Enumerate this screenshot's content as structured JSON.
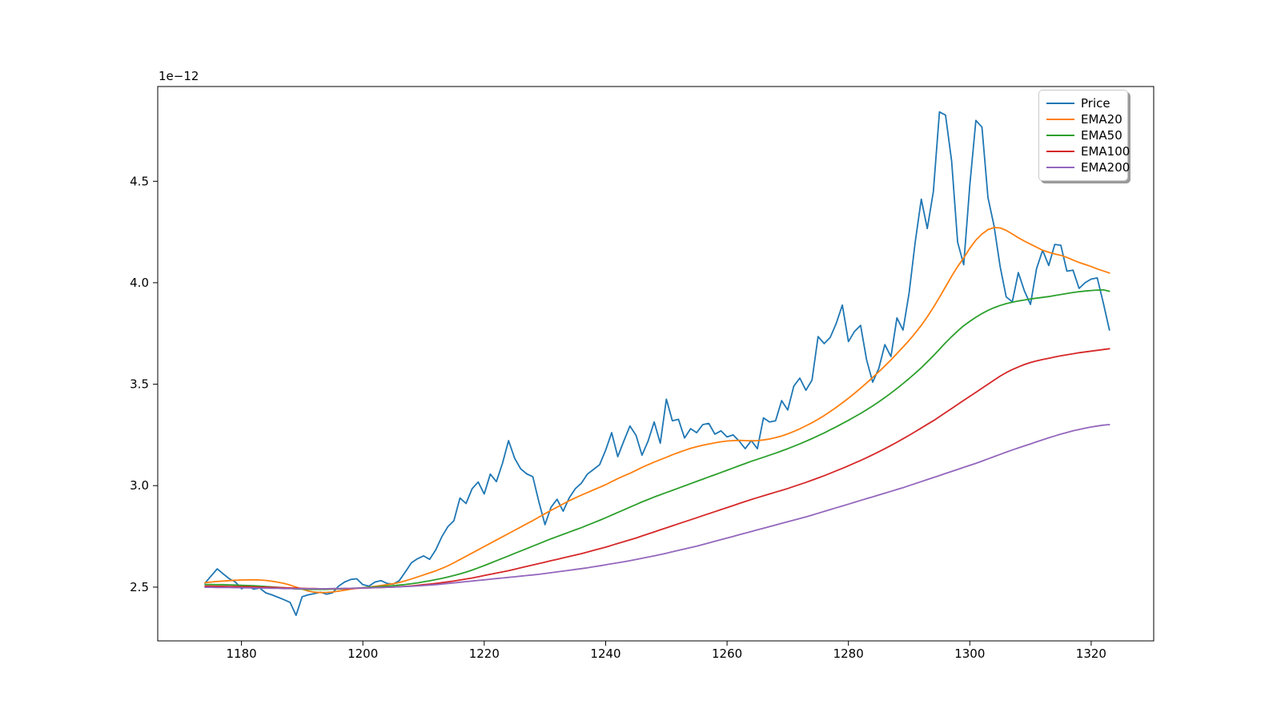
{
  "figure": {
    "y_offset_text": "1e−12",
    "background_color": "#ffffff",
    "spine_color": "#000000",
    "tick_label_color": "#000000"
  },
  "chart_data": {
    "type": "line",
    "title": "",
    "xlabel": "",
    "ylabel": "",
    "grid": false,
    "legend_position": "upper right",
    "y_scale_factor": "1e-12",
    "xlim": [
      1166.2,
      1330.3
    ],
    "ylim": [
      2.235,
      4.967
    ],
    "x_ticks": [
      1180,
      1200,
      1220,
      1240,
      1260,
      1280,
      1300,
      1320
    ],
    "y_ticks": [
      2.5,
      3.0,
      3.5,
      4.0,
      4.5
    ],
    "x_start": 1174,
    "x_step": 1,
    "series": [
      {
        "name": "Price",
        "color": "#1f77b4",
        "values": [
          2.52,
          2.555,
          2.59,
          2.565,
          2.541,
          2.525,
          2.492,
          2.505,
          2.49,
          2.495,
          2.472,
          2.462,
          2.45,
          2.438,
          2.425,
          2.361,
          2.453,
          2.462,
          2.468,
          2.475,
          2.465,
          2.472,
          2.505,
          2.525,
          2.538,
          2.541,
          2.512,
          2.505,
          2.525,
          2.532,
          2.518,
          2.515,
          2.532,
          2.575,
          2.62,
          2.64,
          2.654,
          2.637,
          2.683,
          2.748,
          2.798,
          2.827,
          2.939,
          2.912,
          2.985,
          3.018,
          2.959,
          3.057,
          3.02,
          3.11,
          3.222,
          3.136,
          3.083,
          3.058,
          3.044,
          2.92,
          2.808,
          2.893,
          2.933,
          2.874,
          2.94,
          2.985,
          3.012,
          3.057,
          3.08,
          3.103,
          3.175,
          3.261,
          3.143,
          3.22,
          3.294,
          3.248,
          3.15,
          3.22,
          3.314,
          3.209,
          3.426,
          3.32,
          3.327,
          3.235,
          3.281,
          3.261,
          3.301,
          3.307,
          3.254,
          3.27,
          3.24,
          3.25,
          3.22,
          3.182,
          3.222,
          3.182,
          3.334,
          3.314,
          3.32,
          3.419,
          3.373,
          3.491,
          3.53,
          3.47,
          3.52,
          3.735,
          3.7,
          3.73,
          3.8,
          3.89,
          3.71,
          3.76,
          3.79,
          3.62,
          3.51,
          3.577,
          3.695,
          3.636,
          3.827,
          3.767,
          3.95,
          4.2,
          4.412,
          4.267,
          4.45,
          4.842,
          4.826,
          4.6,
          4.2,
          4.089,
          4.48,
          4.8,
          4.767,
          4.42,
          4.28,
          4.08,
          3.93,
          3.906,
          4.05,
          3.96,
          3.893,
          4.07,
          4.16,
          4.085,
          4.189,
          4.185,
          4.057,
          4.062,
          3.972,
          4.0,
          4.018,
          4.024,
          3.9,
          3.767
        ]
      },
      {
        "name": "EMA20",
        "color": "#ff7f0e",
        "values": [
          2.522,
          2.525,
          2.528,
          2.53,
          2.532,
          2.534,
          2.535,
          2.536,
          2.536,
          2.535,
          2.533,
          2.529,
          2.524,
          2.518,
          2.51,
          2.5,
          2.49,
          2.481,
          2.475,
          2.473,
          2.474,
          2.476,
          2.48,
          2.485,
          2.49,
          2.494,
          2.497,
          2.5,
          2.504,
          2.508,
          2.512,
          2.517,
          2.523,
          2.531,
          2.54,
          2.55,
          2.56,
          2.57,
          2.58,
          2.592,
          2.605,
          2.62,
          2.636,
          2.652,
          2.668,
          2.684,
          2.7,
          2.716,
          2.732,
          2.748,
          2.764,
          2.78,
          2.796,
          2.812,
          2.828,
          2.845,
          2.862,
          2.878,
          2.894,
          2.91,
          2.926,
          2.94,
          2.953,
          2.966,
          2.979,
          2.992,
          3.005,
          3.02,
          3.035,
          3.048,
          3.061,
          3.075,
          3.09,
          3.103,
          3.116,
          3.128,
          3.14,
          3.152,
          3.163,
          3.174,
          3.184,
          3.192,
          3.199,
          3.205,
          3.211,
          3.216,
          3.22,
          3.222,
          3.223,
          3.222,
          3.221,
          3.222,
          3.225,
          3.23,
          3.237,
          3.245,
          3.255,
          3.267,
          3.28,
          3.295,
          3.31,
          3.327,
          3.345,
          3.365,
          3.386,
          3.408,
          3.431,
          3.455,
          3.48,
          3.506,
          3.533,
          3.561,
          3.59,
          3.62,
          3.651,
          3.683,
          3.716,
          3.752,
          3.79,
          3.832,
          3.878,
          3.928,
          3.98,
          4.032,
          4.08,
          4.122,
          4.17,
          4.21,
          4.24,
          4.262,
          4.272,
          4.27,
          4.258,
          4.24,
          4.222,
          4.205,
          4.19,
          4.175,
          4.16,
          4.15,
          4.142,
          4.135,
          4.125,
          4.112,
          4.1,
          4.09,
          4.08,
          4.068,
          4.058,
          4.048
        ]
      },
      {
        "name": "EMA50",
        "color": "#2ca02c",
        "values": [
          2.513,
          2.513,
          2.512,
          2.512,
          2.511,
          2.51,
          2.509,
          2.508,
          2.507,
          2.505,
          2.503,
          2.501,
          2.499,
          2.497,
          2.494,
          2.491,
          2.49,
          2.489,
          2.489,
          2.489,
          2.489,
          2.49,
          2.491,
          2.492,
          2.494,
          2.495,
          2.497,
          2.499,
          2.501,
          2.503,
          2.505,
          2.507,
          2.51,
          2.513,
          2.517,
          2.521,
          2.526,
          2.531,
          2.537,
          2.543,
          2.55,
          2.557,
          2.565,
          2.574,
          2.584,
          2.595,
          2.606,
          2.618,
          2.63,
          2.642,
          2.654,
          2.666,
          2.678,
          2.69,
          2.702,
          2.714,
          2.726,
          2.738,
          2.749,
          2.76,
          2.771,
          2.782,
          2.793,
          2.805,
          2.817,
          2.829,
          2.842,
          2.855,
          2.868,
          2.881,
          2.894,
          2.907,
          2.92,
          2.932,
          2.944,
          2.955,
          2.966,
          2.977,
          2.988,
          2.999,
          3.01,
          3.021,
          3.032,
          3.043,
          3.054,
          3.065,
          3.076,
          3.087,
          3.098,
          3.109,
          3.12,
          3.13,
          3.14,
          3.15,
          3.16,
          3.171,
          3.182,
          3.194,
          3.206,
          3.219,
          3.232,
          3.246,
          3.26,
          3.275,
          3.29,
          3.306,
          3.322,
          3.339,
          3.356,
          3.374,
          3.393,
          3.413,
          3.434,
          3.456,
          3.479,
          3.503,
          3.528,
          3.554,
          3.581,
          3.61,
          3.64,
          3.672,
          3.704,
          3.734,
          3.762,
          3.788,
          3.81,
          3.83,
          3.848,
          3.864,
          3.877,
          3.888,
          3.897,
          3.904,
          3.91,
          3.915,
          3.92,
          3.924,
          3.928,
          3.932,
          3.937,
          3.942,
          3.947,
          3.952,
          3.956,
          3.959,
          3.962,
          3.964,
          3.965,
          3.958
        ]
      },
      {
        "name": "EMA100",
        "color": "#d62728",
        "values": [
          2.505,
          2.505,
          2.504,
          2.504,
          2.503,
          2.503,
          2.502,
          2.502,
          2.501,
          2.5,
          2.5,
          2.499,
          2.498,
          2.497,
          2.496,
          2.495,
          2.494,
          2.493,
          2.493,
          2.492,
          2.492,
          2.492,
          2.492,
          2.493,
          2.493,
          2.494,
          2.495,
          2.496,
          2.497,
          2.498,
          2.499,
          2.5,
          2.502,
          2.504,
          2.506,
          2.509,
          2.512,
          2.515,
          2.518,
          2.522,
          2.526,
          2.53,
          2.535,
          2.54,
          2.545,
          2.551,
          2.557,
          2.563,
          2.569,
          2.575,
          2.581,
          2.588,
          2.595,
          2.602,
          2.609,
          2.616,
          2.623,
          2.63,
          2.637,
          2.644,
          2.651,
          2.658,
          2.665,
          2.673,
          2.681,
          2.689,
          2.697,
          2.706,
          2.715,
          2.724,
          2.733,
          2.742,
          2.752,
          2.762,
          2.772,
          2.782,
          2.792,
          2.802,
          2.812,
          2.822,
          2.832,
          2.842,
          2.852,
          2.862,
          2.872,
          2.882,
          2.892,
          2.902,
          2.912,
          2.922,
          2.932,
          2.941,
          2.95,
          2.959,
          2.968,
          2.977,
          2.986,
          2.996,
          3.006,
          3.016,
          3.027,
          3.038,
          3.049,
          3.061,
          3.073,
          3.085,
          3.098,
          3.111,
          3.124,
          3.138,
          3.152,
          3.167,
          3.182,
          3.198,
          3.214,
          3.231,
          3.248,
          3.266,
          3.284,
          3.302,
          3.32,
          3.34,
          3.36,
          3.38,
          3.4,
          3.42,
          3.44,
          3.46,
          3.48,
          3.5,
          3.52,
          3.54,
          3.557,
          3.572,
          3.585,
          3.597,
          3.607,
          3.615,
          3.622,
          3.628,
          3.634,
          3.64,
          3.645,
          3.65,
          3.655,
          3.659,
          3.663,
          3.667,
          3.671,
          3.675
        ]
      },
      {
        "name": "EMA200",
        "color": "#9467bd",
        "values": [
          2.499,
          2.499,
          2.498,
          2.498,
          2.498,
          2.497,
          2.497,
          2.496,
          2.496,
          2.495,
          2.495,
          2.494,
          2.494,
          2.493,
          2.493,
          2.492,
          2.492,
          2.492,
          2.492,
          2.492,
          2.492,
          2.493,
          2.493,
          2.494,
          2.494,
          2.495,
          2.496,
          2.496,
          2.497,
          2.498,
          2.499,
          2.5,
          2.501,
          2.503,
          2.504,
          2.506,
          2.508,
          2.51,
          2.512,
          2.515,
          2.518,
          2.521,
          2.524,
          2.527,
          2.53,
          2.533,
          2.536,
          2.539,
          2.542,
          2.545,
          2.548,
          2.551,
          2.554,
          2.557,
          2.56,
          2.563,
          2.567,
          2.571,
          2.575,
          2.579,
          2.583,
          2.587,
          2.591,
          2.595,
          2.6,
          2.605,
          2.61,
          2.615,
          2.62,
          2.625,
          2.63,
          2.636,
          2.642,
          2.648,
          2.654,
          2.66,
          2.667,
          2.674,
          2.681,
          2.688,
          2.695,
          2.702,
          2.71,
          2.718,
          2.726,
          2.734,
          2.742,
          2.75,
          2.758,
          2.766,
          2.774,
          2.782,
          2.79,
          2.798,
          2.806,
          2.814,
          2.822,
          2.83,
          2.838,
          2.846,
          2.855,
          2.864,
          2.873,
          2.882,
          2.891,
          2.9,
          2.909,
          2.918,
          2.927,
          2.936,
          2.945,
          2.954,
          2.963,
          2.972,
          2.981,
          2.99,
          3.0,
          3.01,
          3.02,
          3.03,
          3.04,
          3.05,
          3.06,
          3.07,
          3.08,
          3.09,
          3.1,
          3.11,
          3.121,
          3.132,
          3.143,
          3.154,
          3.165,
          3.176,
          3.186,
          3.196,
          3.206,
          3.216,
          3.226,
          3.236,
          3.245,
          3.254,
          3.262,
          3.27,
          3.277,
          3.283,
          3.289,
          3.294,
          3.298,
          3.301
        ]
      }
    ]
  }
}
